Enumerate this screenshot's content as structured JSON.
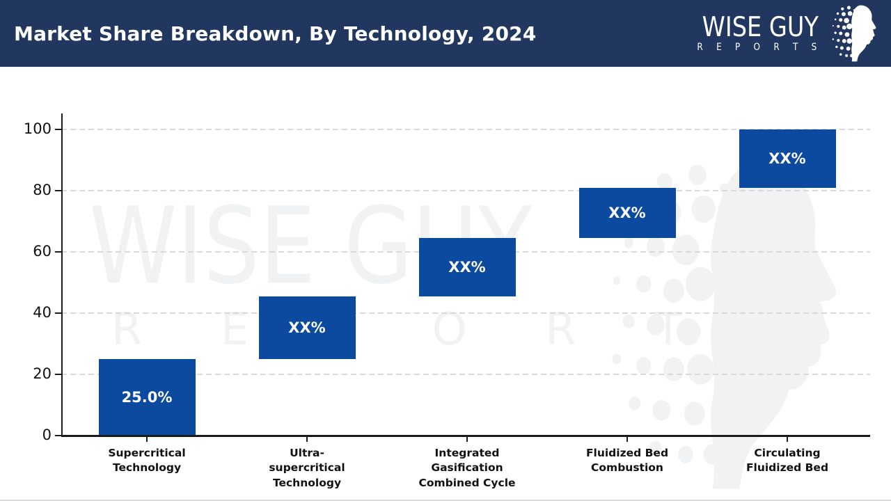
{
  "header": {
    "title": "Market Share Breakdown, By Technology, 2024",
    "logo": {
      "name": "WISE GUY",
      "sub": "R E P O R T S"
    }
  },
  "watermark": {
    "line1": "WISE GUY",
    "line2": "R E P O R T S"
  },
  "chart_data": {
    "type": "bar",
    "subtype": "waterfall",
    "title": "Market Share Breakdown, By Technology, 2024",
    "unit": "%",
    "categories": [
      "Supercritical\nTechnology",
      "Ultra-\nsupercritical\nTechnology",
      "Integrated\nGasification\nCombined Cycle",
      "Fluidized Bed\nCombustion",
      "Circulating\nFluidized Bed"
    ],
    "segments": [
      {
        "category": "Supercritical Technology",
        "start": 0,
        "end": 25,
        "label": "25.0%"
      },
      {
        "category": "Ultra-supercritical Technology",
        "start": 25,
        "end": 45.5,
        "label": "XX%"
      },
      {
        "category": "Integrated Gasification Combined Cycle",
        "start": 45.5,
        "end": 64.5,
        "label": "XX%"
      },
      {
        "category": "Fluidized Bed Combustion",
        "start": 64.5,
        "end": 81,
        "label": "XX%"
      },
      {
        "category": "Circulating Fluidized Bed",
        "start": 81,
        "end": 100,
        "label": "XX%"
      }
    ],
    "xlabel": "",
    "ylabel": "",
    "yticks": [
      0,
      20,
      40,
      60,
      80,
      100
    ],
    "ylim": [
      0,
      105
    ],
    "grid": "horizontal-dashed",
    "legend": false,
    "colors": {
      "bar": "#0b4a9f",
      "bar_label_text": "#ffffff",
      "axis": "#1a1a1a",
      "gridline": "#d9d9d9",
      "header_bg": "#21375f",
      "watermark": "#f1f2f4"
    }
  }
}
